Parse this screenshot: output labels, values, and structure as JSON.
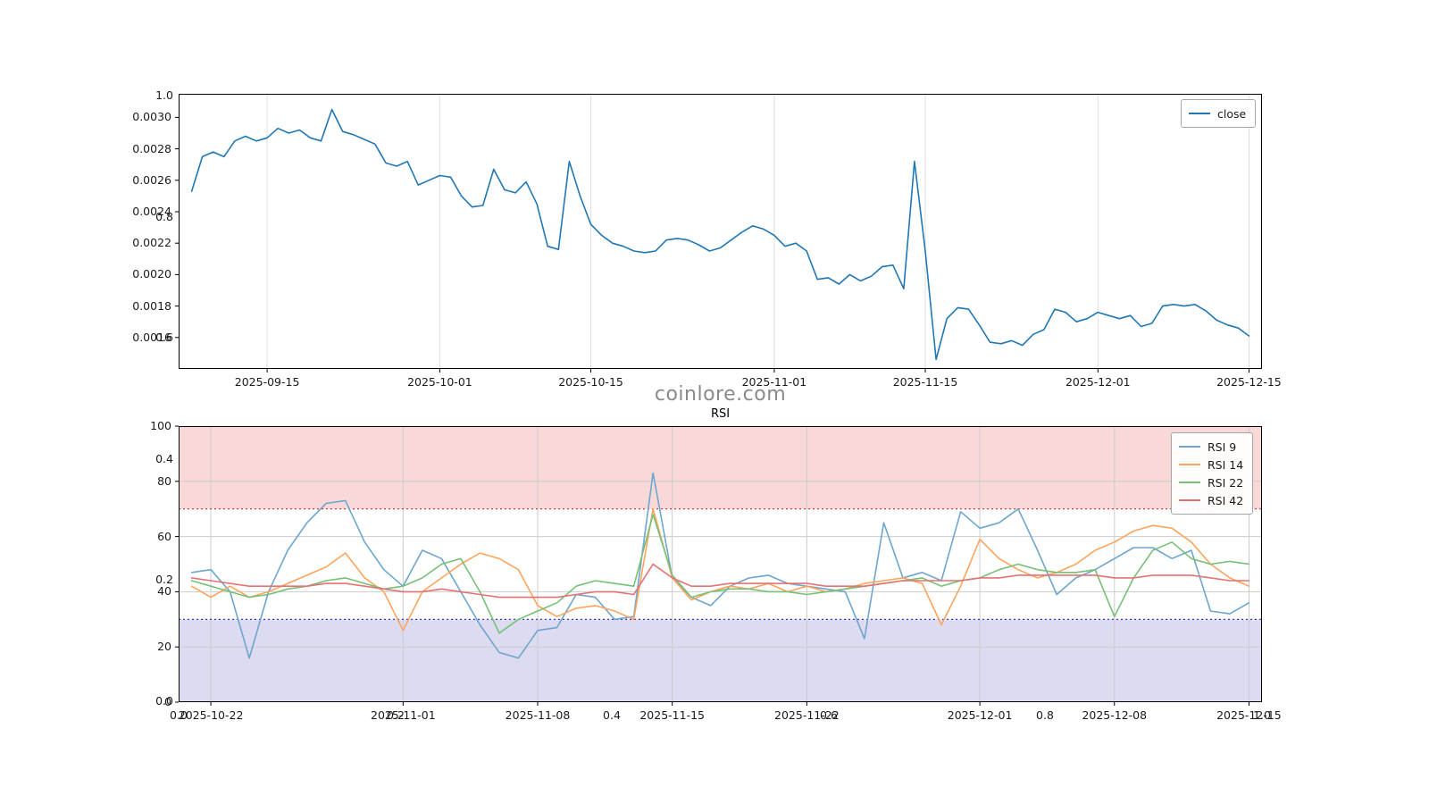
{
  "watermark": "coinlore.com",
  "stray_axis_labels": {
    "left": [
      "1.0",
      "0.8",
      "0.6",
      "0.4",
      "0.2",
      "0.0"
    ],
    "bottom": [
      "0.0",
      "0.2",
      "0.4",
      "0.6",
      "0.8",
      "1.0"
    ]
  },
  "chart_data": [
    {
      "type": "line",
      "title": "",
      "legend_position": "upper right",
      "grid": {
        "vertical": true,
        "horizontal": false
      },
      "grid_color": "#e0e0e0",
      "ylim": [
        0.0014,
        0.00315
      ],
      "y_ticks": [
        "0.0016",
        "0.0018",
        "0.0020",
        "0.0022",
        "0.0024",
        "0.0026",
        "0.0028",
        "0.0030"
      ],
      "x_ticks": [
        "2025-09-15",
        "2025-10-01",
        "2025-10-15",
        "2025-11-01",
        "2025-11-15",
        "2025-12-01",
        "2025-12-15"
      ],
      "dates": [
        "2025-09-08",
        "2025-09-09",
        "2025-09-10",
        "2025-09-11",
        "2025-09-12",
        "2025-09-13",
        "2025-09-14",
        "2025-09-15",
        "2025-09-16",
        "2025-09-17",
        "2025-09-18",
        "2025-09-19",
        "2025-09-20",
        "2025-09-21",
        "2025-09-22",
        "2025-09-23",
        "2025-09-24",
        "2025-09-25",
        "2025-09-26",
        "2025-09-27",
        "2025-09-28",
        "2025-09-29",
        "2025-09-30",
        "2025-10-01",
        "2025-10-02",
        "2025-10-03",
        "2025-10-04",
        "2025-10-05",
        "2025-10-06",
        "2025-10-07",
        "2025-10-08",
        "2025-10-09",
        "2025-10-10",
        "2025-10-11",
        "2025-10-12",
        "2025-10-13",
        "2025-10-14",
        "2025-10-15",
        "2025-10-16",
        "2025-10-17",
        "2025-10-18",
        "2025-10-19",
        "2025-10-20",
        "2025-10-21",
        "2025-10-22",
        "2025-10-23",
        "2025-10-24",
        "2025-10-25",
        "2025-10-26",
        "2025-10-27",
        "2025-10-28",
        "2025-10-29",
        "2025-10-30",
        "2025-10-31",
        "2025-11-01",
        "2025-11-02",
        "2025-11-03",
        "2025-11-04",
        "2025-11-05",
        "2025-11-06",
        "2025-11-07",
        "2025-11-08",
        "2025-11-09",
        "2025-11-10",
        "2025-11-11",
        "2025-11-12",
        "2025-11-13",
        "2025-11-14",
        "2025-11-15",
        "2025-11-16",
        "2025-11-17",
        "2025-11-18",
        "2025-11-19",
        "2025-11-20",
        "2025-11-21",
        "2025-11-22",
        "2025-11-23",
        "2025-11-24",
        "2025-11-25",
        "2025-11-26",
        "2025-11-27",
        "2025-11-28",
        "2025-11-29",
        "2025-11-30",
        "2025-12-01",
        "2025-12-02",
        "2025-12-03",
        "2025-12-04",
        "2025-12-05",
        "2025-12-06",
        "2025-12-07",
        "2025-12-08",
        "2025-12-09",
        "2025-12-10",
        "2025-12-11",
        "2025-12-12",
        "2025-12-13",
        "2025-12-14",
        "2025-12-15"
      ],
      "series": [
        {
          "name": "close",
          "color": "#1f77b4",
          "values": [
            0.00253,
            0.00275,
            0.00278,
            0.00275,
            0.00285,
            0.00288,
            0.00285,
            0.00287,
            0.00293,
            0.0029,
            0.00292,
            0.00287,
            0.00285,
            0.00305,
            0.00291,
            0.00289,
            0.00286,
            0.00283,
            0.00271,
            0.00269,
            0.00272,
            0.00257,
            0.0026,
            0.00263,
            0.00262,
            0.0025,
            0.00243,
            0.00244,
            0.00267,
            0.00254,
            0.00252,
            0.00259,
            0.00245,
            0.00218,
            0.00216,
            0.00272,
            0.0025,
            0.00232,
            0.00225,
            0.0022,
            0.00218,
            0.00215,
            0.00214,
            0.00215,
            0.00222,
            0.00223,
            0.00222,
            0.00219,
            0.00215,
            0.00217,
            0.00222,
            0.00227,
            0.00231,
            0.00229,
            0.00225,
            0.00218,
            0.0022,
            0.00215,
            0.00197,
            0.00198,
            0.00194,
            0.002,
            0.00196,
            0.00199,
            0.00205,
            0.00206,
            0.00191,
            0.00272,
            0.00215,
            0.00146,
            0.00172,
            0.00179,
            0.00178,
            0.00168,
            0.00157,
            0.00156,
            0.00158,
            0.00155,
            0.00162,
            0.00165,
            0.00178,
            0.00176,
            0.0017,
            0.00172,
            0.00176,
            0.00174,
            0.00172,
            0.00174,
            0.00167,
            0.00169,
            0.0018,
            0.00181,
            0.0018,
            0.00181,
            0.00177,
            0.00171,
            0.00168,
            0.00166,
            0.00161
          ]
        }
      ]
    },
    {
      "type": "line",
      "title": "RSI",
      "legend_position": "upper right",
      "grid": {
        "vertical": true,
        "horizontal": true
      },
      "grid_color": "#cccccc",
      "ylim": [
        0,
        100
      ],
      "y_ticks": [
        "0",
        "20",
        "40",
        "60",
        "80",
        "100"
      ],
      "x_ticks": [
        "2025-10-22",
        "2025-11-01",
        "2025-11-08",
        "2025-11-15",
        "2025-11-22",
        "2025-12-01",
        "2025-12-08",
        "2025-12-15"
      ],
      "bands": [
        {
          "from": 70,
          "to": 100,
          "color": "#f9d8d8",
          "meaning": "overbought"
        },
        {
          "from": 0,
          "to": 30,
          "color": "#dcdbf2",
          "meaning": "oversold"
        }
      ],
      "reference_lines": [
        {
          "value": 70,
          "color": "#dd2222",
          "style": "dotted"
        },
        {
          "value": 30,
          "color": "#2222cc",
          "style": "dotted"
        }
      ],
      "dates": [
        "2025-10-21",
        "2025-10-22",
        "2025-10-23",
        "2025-10-24",
        "2025-10-25",
        "2025-10-26",
        "2025-10-27",
        "2025-10-28",
        "2025-10-29",
        "2025-10-30",
        "2025-10-31",
        "2025-11-01",
        "2025-11-02",
        "2025-11-03",
        "2025-11-04",
        "2025-11-05",
        "2025-11-06",
        "2025-11-07",
        "2025-11-08",
        "2025-11-09",
        "2025-11-10",
        "2025-11-11",
        "2025-11-12",
        "2025-11-13",
        "2025-11-14",
        "2025-11-15",
        "2025-11-16",
        "2025-11-17",
        "2025-11-18",
        "2025-11-19",
        "2025-11-20",
        "2025-11-21",
        "2025-11-22",
        "2025-11-23",
        "2025-11-24",
        "2025-11-25",
        "2025-11-26",
        "2025-11-27",
        "2025-11-28",
        "2025-11-29",
        "2025-11-30",
        "2025-12-01",
        "2025-12-02",
        "2025-12-03",
        "2025-12-04",
        "2025-12-05",
        "2025-12-06",
        "2025-12-07",
        "2025-12-08",
        "2025-12-09",
        "2025-12-10",
        "2025-12-11",
        "2025-12-12",
        "2025-12-13",
        "2025-12-14",
        "2025-12-15"
      ],
      "series": [
        {
          "name": "RSI 9",
          "color": "#6da6ce",
          "values": [
            47,
            48,
            40,
            16,
            40,
            55,
            65,
            72,
            73,
            58,
            48,
            42,
            55,
            52,
            40,
            28,
            18,
            16,
            26,
            27,
            39,
            38,
            30,
            31,
            83,
            45,
            38,
            35,
            42,
            45,
            46,
            43,
            42,
            41,
            40,
            23,
            65,
            45,
            47,
            44,
            69,
            63,
            65,
            70,
            55,
            39,
            45,
            48,
            52,
            56,
            56,
            52,
            55,
            33,
            32,
            36
          ]
        },
        {
          "name": "RSI 14",
          "color": "#ffa45c",
          "values": [
            42,
            38,
            42,
            38,
            40,
            43,
            46,
            49,
            54,
            45,
            40,
            26,
            40,
            45,
            50,
            54,
            52,
            48,
            35,
            31,
            34,
            35,
            33,
            30,
            70,
            45,
            37,
            40,
            42,
            41,
            43,
            40,
            42,
            40,
            41,
            43,
            44,
            45,
            43,
            28,
            42,
            59,
            52,
            48,
            45,
            47,
            50,
            55,
            58,
            62,
            64,
            63,
            58,
            50,
            45,
            42
          ]
        },
        {
          "name": "RSI 22",
          "color": "#76c176",
          "values": [
            44,
            42,
            40,
            38,
            39,
            41,
            42,
            44,
            45,
            43,
            41,
            42,
            45,
            50,
            52,
            40,
            25,
            30,
            33,
            36,
            42,
            44,
            43,
            42,
            68,
            46,
            38,
            40,
            41,
            41,
            40,
            40,
            39,
            40,
            41,
            42,
            43,
            44,
            45,
            42,
            44,
            45,
            48,
            50,
            48,
            47,
            47,
            48,
            31,
            45,
            55,
            58,
            52,
            50,
            51,
            50
          ]
        },
        {
          "name": "RSI 42",
          "color": "#e47273",
          "values": [
            45,
            44,
            43,
            42,
            42,
            42,
            42,
            43,
            43,
            42,
            41,
            40,
            40,
            41,
            40,
            39,
            38,
            38,
            38,
            38,
            39,
            40,
            40,
            39,
            50,
            45,
            42,
            42,
            43,
            43,
            43,
            43,
            43,
            42,
            42,
            42,
            43,
            44,
            44,
            44,
            44,
            45,
            45,
            46,
            46,
            46,
            46,
            46,
            45,
            45,
            46,
            46,
            46,
            45,
            44,
            44
          ]
        }
      ]
    }
  ]
}
